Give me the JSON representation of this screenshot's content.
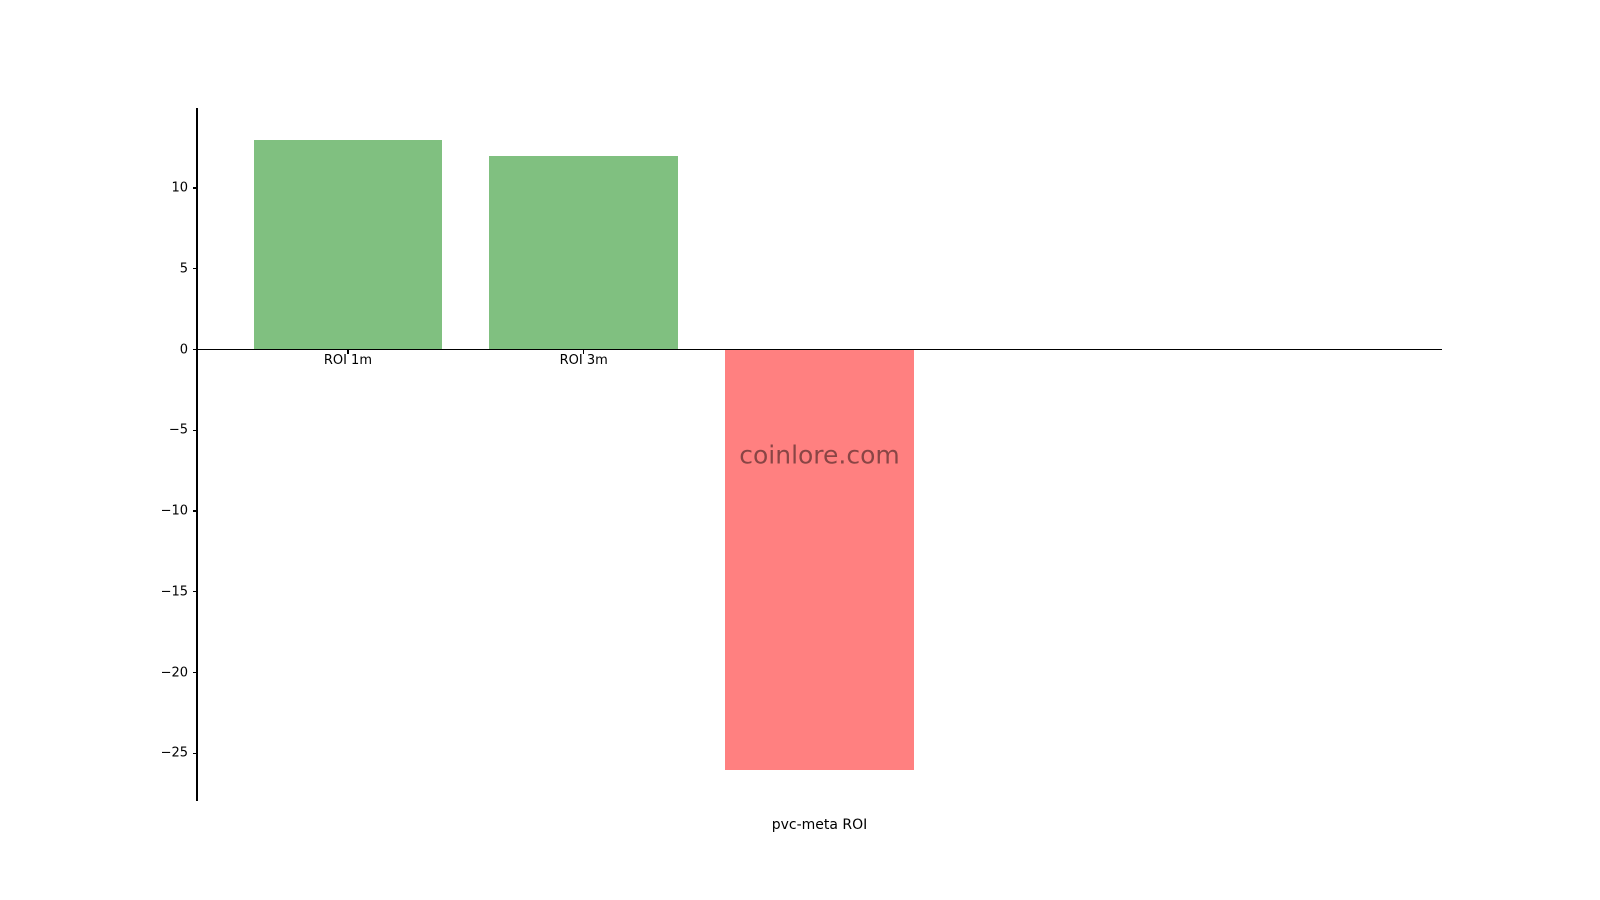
{
  "watermark": {
    "text": "coinlore.com",
    "color": "#000000",
    "opacity": 0.46
  },
  "chart_data": {
    "type": "bar",
    "categories": [
      "ROI 1m",
      "ROI 3m",
      ""
    ],
    "values": [
      13,
      12,
      -26
    ],
    "bar_colors": [
      "#80c080",
      "#80c080",
      "#ff8080"
    ],
    "positive_color": "#80c080",
    "negative_color": "#ff8080",
    "axis_color": "#000000",
    "xlabel": "pvc-meta ROI",
    "ylabel": "",
    "ylim": [
      -27.95,
      14.95
    ],
    "xlim": [
      -0.64,
      4.64
    ],
    "bar_width_units": 0.8,
    "yticks": [
      10,
      5,
      0,
      -5,
      -10,
      -15,
      -20,
      -25
    ],
    "ytick_labels": [
      "10",
      "5",
      "0",
      "−5",
      "−10",
      "−15",
      "−20",
      "−25"
    ],
    "grid": false,
    "legend": "none"
  }
}
